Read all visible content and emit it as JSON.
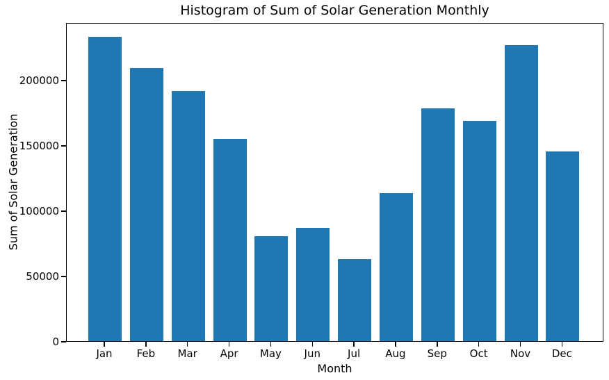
{
  "chart_data": {
    "type": "bar",
    "title": "Histogram of Sum of Solar Generation Monthly",
    "xlabel": "Month",
    "ylabel": "Sum of Solar Generation",
    "categories": [
      "Jan",
      "Feb",
      "Mar",
      "Apr",
      "May",
      "Jun",
      "Jul",
      "Aug",
      "Sep",
      "Oct",
      "Nov",
      "Dec"
    ],
    "values": [
      233000,
      209000,
      191500,
      154500,
      80500,
      86500,
      63000,
      113500,
      178000,
      168500,
      226500,
      145000
    ],
    "yticks": [
      0,
      50000,
      100000,
      150000,
      200000
    ],
    "ylim": [
      0,
      244000
    ],
    "grid": false,
    "legend": null,
    "colors": {
      "bar": "#1f77b4",
      "axis": "#000000",
      "text": "#000000",
      "background": "#ffffff"
    }
  }
}
